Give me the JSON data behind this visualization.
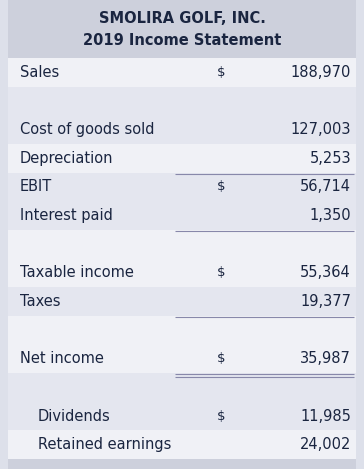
{
  "title_line1": "SMOLIRA GOLF, INC.",
  "title_line2": "2019 Income Statement",
  "header_bg": "#cdd0dc",
  "bg_overall": "#dde0ea",
  "text_color": "#1a2540",
  "line_color": "#8888aa",
  "font_size": 10.5,
  "title_font_size": 10.5,
  "rows": [
    {
      "label": "Sales",
      "dollar": "$",
      "value": "188,970",
      "indent": false,
      "top_line": false,
      "double_line_above": false,
      "bg": "#f0f1f6"
    },
    {
      "label": "",
      "dollar": "",
      "value": "",
      "indent": false,
      "top_line": false,
      "double_line_above": false,
      "bg": "#e4e6ef"
    },
    {
      "label": "Cost of goods sold",
      "dollar": "",
      "value": "127,003",
      "indent": false,
      "top_line": false,
      "double_line_above": false,
      "bg": "#e4e6ef"
    },
    {
      "label": "Depreciation",
      "dollar": "",
      "value": "5,253",
      "indent": false,
      "top_line": false,
      "double_line_above": false,
      "bg": "#f0f1f6"
    },
    {
      "label": "EBIT",
      "dollar": "$",
      "value": "56,714",
      "indent": false,
      "top_line": true,
      "double_line_above": false,
      "bg": "#e4e6ef"
    },
    {
      "label": "Interest paid",
      "dollar": "",
      "value": "1,350",
      "indent": false,
      "top_line": false,
      "double_line_above": false,
      "bg": "#e4e6ef"
    },
    {
      "label": "",
      "dollar": "",
      "value": "",
      "indent": false,
      "top_line": true,
      "double_line_above": false,
      "bg": "#f0f1f6"
    },
    {
      "label": "Taxable income",
      "dollar": "$",
      "value": "55,364",
      "indent": false,
      "top_line": false,
      "double_line_above": false,
      "bg": "#f0f1f6"
    },
    {
      "label": "Taxes",
      "dollar": "",
      "value": "19,377",
      "indent": false,
      "top_line": false,
      "double_line_above": false,
      "bg": "#e4e6ef"
    },
    {
      "label": "",
      "dollar": "",
      "value": "",
      "indent": false,
      "top_line": true,
      "double_line_above": false,
      "bg": "#f0f1f6"
    },
    {
      "label": "Net income",
      "dollar": "$",
      "value": "35,987",
      "indent": false,
      "top_line": false,
      "double_line_above": false,
      "bg": "#f0f1f6"
    },
    {
      "label": "",
      "dollar": "",
      "value": "",
      "indent": false,
      "top_line": false,
      "double_line_above": true,
      "bg": "#e4e6ef"
    },
    {
      "label": "Dividends",
      "dollar": "$",
      "value": "11,985",
      "indent": true,
      "top_line": false,
      "double_line_above": false,
      "bg": "#e4e6ef"
    },
    {
      "label": "Retained earnings",
      "dollar": "",
      "value": "24,002",
      "indent": true,
      "top_line": false,
      "double_line_above": false,
      "bg": "#f0f1f6"
    }
  ]
}
